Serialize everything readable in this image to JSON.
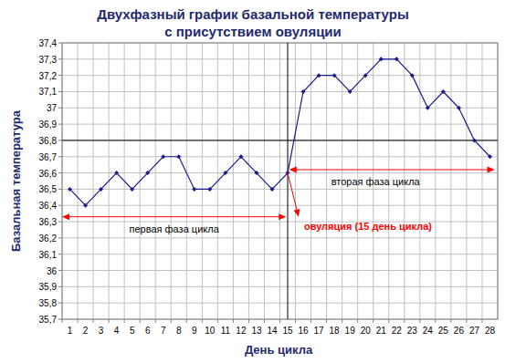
{
  "chart_data": {
    "type": "line",
    "title": "Двухфазный график базальной температуры",
    "subtitle": "с присутствием овуляции",
    "x_label": "День цикла",
    "y_label": "Базальная температура",
    "categories": [
      "1",
      "2",
      "3",
      "4",
      "5",
      "6",
      "7",
      "8",
      "9",
      "10",
      "11",
      "12",
      "13",
      "14",
      "15",
      "16",
      "17",
      "18",
      "19",
      "20",
      "21",
      "22",
      "23",
      "24",
      "25",
      "26",
      "27",
      "28"
    ],
    "values": [
      36.5,
      36.4,
      36.5,
      36.6,
      36.5,
      36.6,
      36.7,
      36.7,
      36.5,
      36.5,
      36.6,
      36.7,
      36.6,
      36.5,
      36.6,
      37.1,
      37.2,
      37.2,
      37.1,
      37.2,
      37.3,
      37.3,
      37.2,
      37.0,
      37.1,
      37.0,
      36.8,
      36.7
    ],
    "color": "#1a1a8c",
    "marker": "diamond",
    "ylim": [
      35.7,
      37.4
    ],
    "yticks": [
      {
        "value": 35.7,
        "label": "35,7"
      },
      {
        "value": 35.8,
        "label": "35,8"
      },
      {
        "value": 35.9,
        "label": "35,9"
      },
      36,
      {
        "value": 36.1,
        "label": "36,1"
      },
      {
        "value": 36.2,
        "label": "36,2"
      },
      {
        "value": 36.3,
        "label": "36,3"
      },
      {
        "value": 36.4,
        "label": "36,4"
      },
      {
        "value": 36.5,
        "label": "36,5"
      },
      {
        "value": 36.6,
        "label": "36,6"
      },
      {
        "value": 36.7,
        "label": "36,7"
      },
      {
        "value": 36.8,
        "label": "36,8"
      },
      {
        "value": 36.9,
        "label": "36,9"
      },
      37,
      {
        "value": 37.1,
        "label": "37,1"
      },
      {
        "value": 37.2,
        "label": "37,2"
      },
      {
        "value": 37.3,
        "label": "37,3"
      },
      {
        "value": 37.4,
        "label": "37,4"
      }
    ],
    "grid": true,
    "reference_lines": {
      "x": 15,
      "y": 36.8
    },
    "annotations": [
      {
        "text": "первая фаза цикла",
        "x": [
          0.5,
          14.9
        ],
        "y": 36.33,
        "color": "#ff0000"
      },
      {
        "text": "вторая фаза цикла",
        "x": [
          15.1,
          28.3
        ],
        "y": 36.62,
        "color": "#ff0000"
      },
      {
        "text": "овуляция (15 день цикла)",
        "from": [
          15,
          36.6
        ],
        "to": [
          15.7,
          36.33
        ],
        "color": "#ff0000"
      }
    ]
  }
}
